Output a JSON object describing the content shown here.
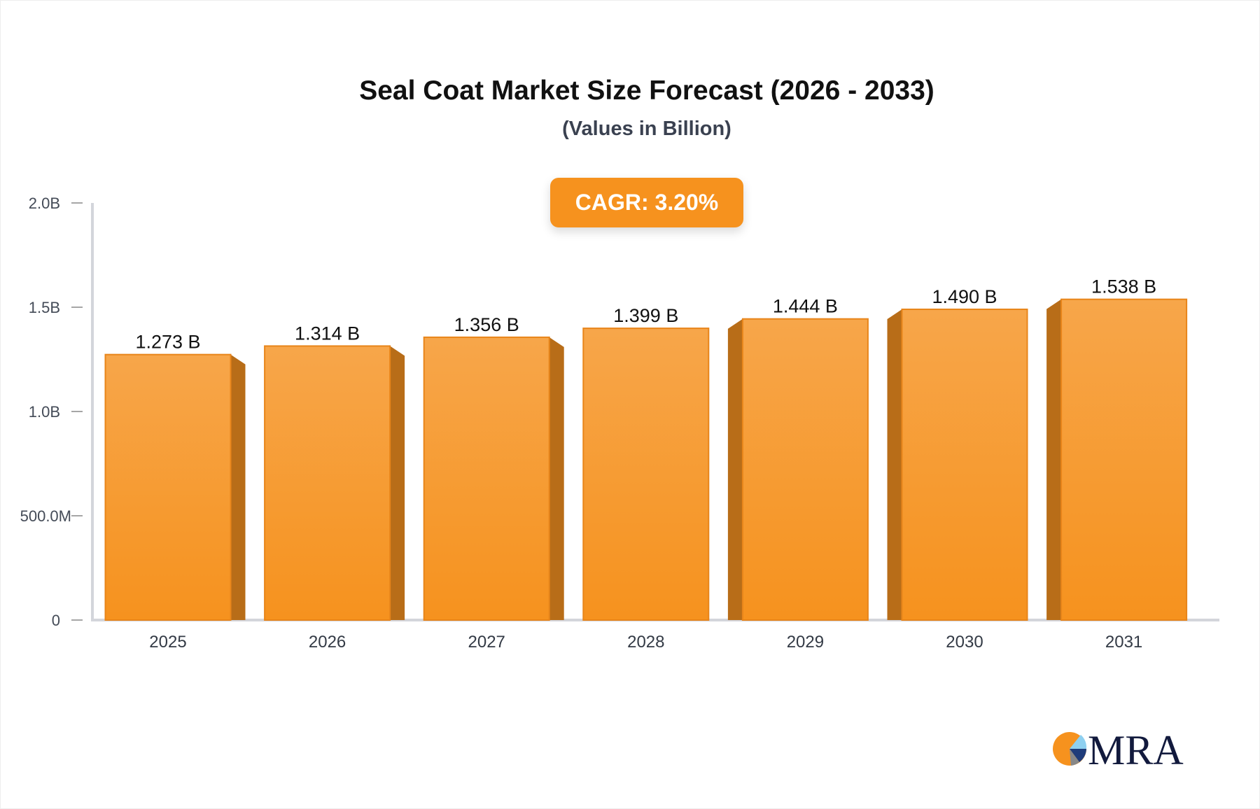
{
  "chart_data": {
    "type": "bar",
    "title": "Seal Coat Market Size Forecast (2026 - 2033)",
    "subtitle": "(Values in Billion)",
    "annotation": "CAGR: 3.20%",
    "categories": [
      "2025",
      "2026",
      "2027",
      "2028",
      "2029",
      "2030",
      "2031"
    ],
    "values": [
      1.273,
      1.314,
      1.356,
      1.399,
      1.444,
      1.49,
      1.538
    ],
    "data_labels": [
      "1.273 B",
      "1.314 B",
      "1.356 B",
      "1.399 B",
      "1.444 B",
      "1.490 B",
      "1.538 B"
    ],
    "ylim": [
      0,
      2.0
    ],
    "yticks": [
      0,
      0.5,
      1.0,
      1.5,
      2.0
    ],
    "ytick_labels": [
      "0",
      "500.0M",
      "1.0B",
      "1.5B",
      "2.0B"
    ],
    "xlabel": "",
    "ylabel": "",
    "grid": false,
    "colors": {
      "bar": "#f6921e",
      "bar_top": "#f7a64a",
      "bar_side": "#b86d18",
      "axis": "#d3d5db"
    }
  },
  "logo": {
    "text": "MRA"
  }
}
